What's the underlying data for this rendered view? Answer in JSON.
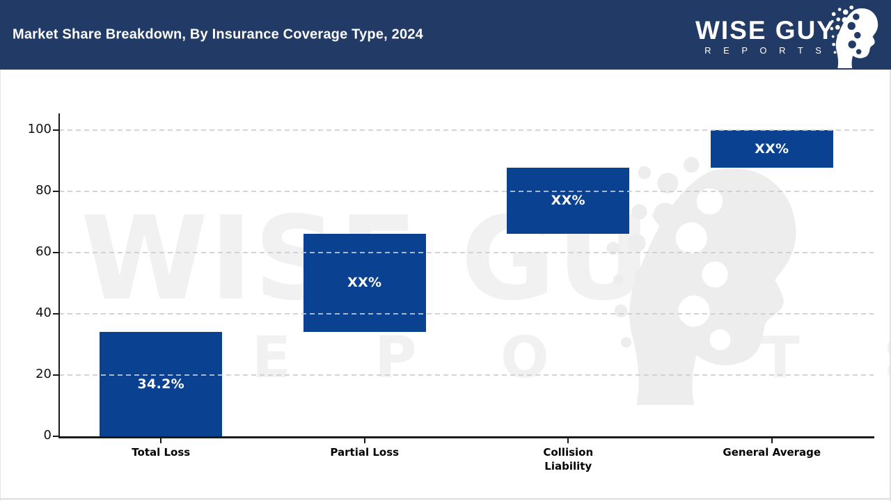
{
  "header": {
    "title": "Market Share Breakdown, By Insurance Coverage Type, 2024",
    "logo_line1": "WISE GUY",
    "logo_line2": "R E P O R T S"
  },
  "watermark": {
    "line1": "WISE GUY",
    "line2": "R E P O R T S"
  },
  "colors": {
    "header_bg": "#213a66",
    "bar": "#0a4191",
    "grid": "#cccccc",
    "axis": "#1a1a1a",
    "bar_label_text": "#ffffff",
    "watermark": "#f1f1f1"
  },
  "chart_data": {
    "type": "bar",
    "variant": "floating-segment-waterfall",
    "title": "Market Share Breakdown, By Insurance Coverage Type, 2024",
    "categories": [
      "Total Loss",
      "Partial Loss",
      "Collision Liability",
      "General Average"
    ],
    "bars": [
      {
        "category": "Total Loss",
        "label_lines": [
          "Total Loss"
        ],
        "start": 0,
        "end": 34.2,
        "value_label": "34.2%"
      },
      {
        "category": "Partial Loss",
        "label_lines": [
          "Partial Loss"
        ],
        "start": 34.2,
        "end": 66.2,
        "value_label": "XX%"
      },
      {
        "category": "Collision Liability",
        "label_lines": [
          "Collision",
          "Liability"
        ],
        "start": 66.2,
        "end": 87.8,
        "value_label": "XX%"
      },
      {
        "category": "General Average",
        "label_lines": [
          "General Average"
        ],
        "start": 87.8,
        "end": 100,
        "value_label": "XX%"
      }
    ],
    "xlabel": "",
    "ylabel": "",
    "ylim": [
      0,
      100
    ],
    "yticks": [
      0,
      20,
      40,
      60,
      80,
      100
    ],
    "grid": "horizontal dashed, drawn over bars",
    "legend": "none"
  }
}
